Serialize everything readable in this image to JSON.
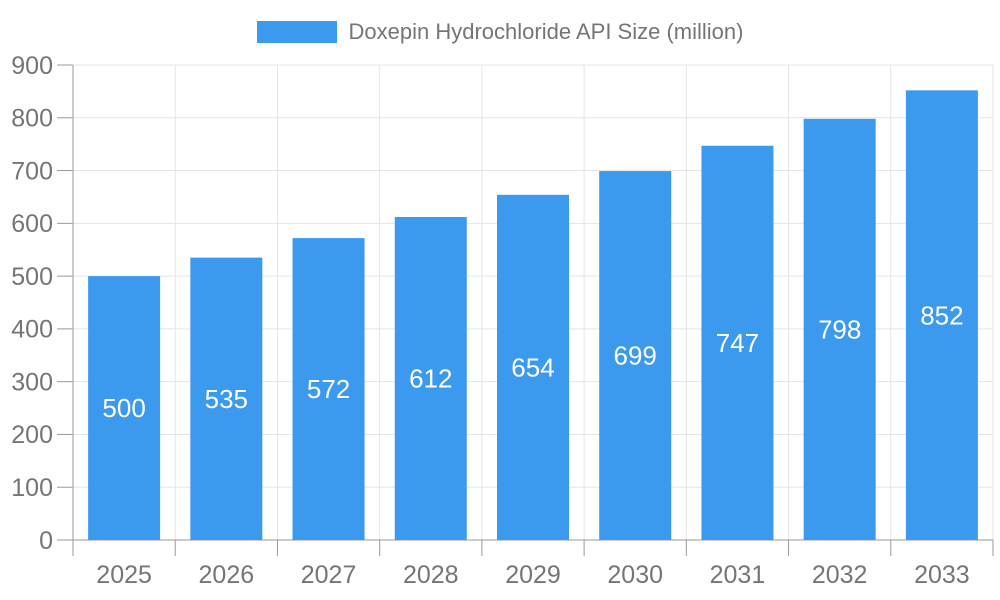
{
  "chart_data": {
    "type": "bar",
    "series_name": "Doxepin Hydrochloride API Size (million)",
    "categories": [
      "2025",
      "2026",
      "2027",
      "2028",
      "2029",
      "2030",
      "2031",
      "2032",
      "2033"
    ],
    "values": [
      500,
      535,
      572,
      612,
      654,
      699,
      747,
      798,
      852
    ],
    "xlabel": "",
    "ylabel": "",
    "ylim": [
      0,
      900
    ],
    "ytick_interval": 100,
    "grid": true,
    "legend_position": "top-center",
    "value_labels": "inside-center"
  },
  "colors": {
    "bar": "#3B99EE",
    "grid": "#E5E5E5",
    "axis": "#999999",
    "text": "#757575",
    "value_label": "#FFFFFF",
    "background": "#FFFFFF"
  }
}
